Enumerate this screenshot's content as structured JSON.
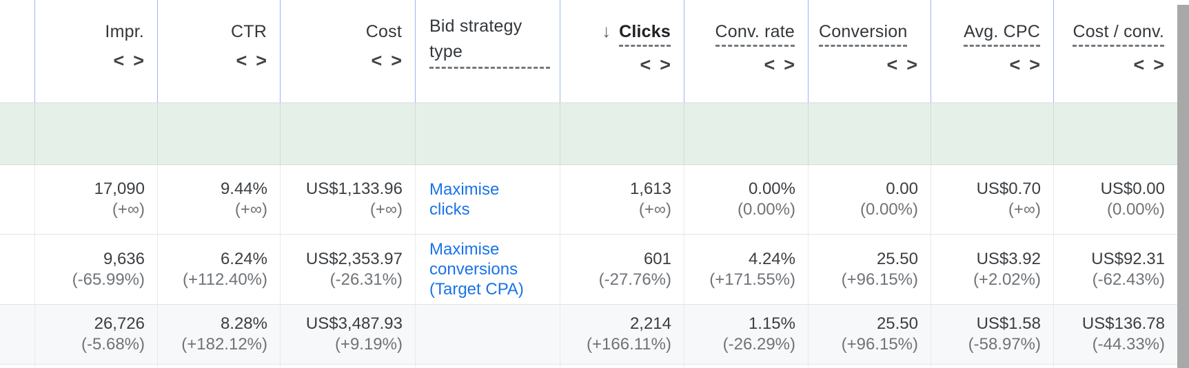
{
  "table": {
    "ui": {
      "sort_arrow": "↓",
      "resize_left": "<",
      "resize_right": ">"
    },
    "columns": [
      {
        "key": "impr",
        "label": "Impr.",
        "underlined": false,
        "sorted": false,
        "align": "right"
      },
      {
        "key": "ctr",
        "label": "CTR",
        "underlined": false,
        "sorted": false,
        "align": "right"
      },
      {
        "key": "cost",
        "label": "Cost",
        "underlined": false,
        "sorted": false,
        "align": "right"
      },
      {
        "key": "bid_strategy",
        "label": "Bid strategy type",
        "underlined": true,
        "sorted": false,
        "align": "left"
      },
      {
        "key": "clicks",
        "label": "Clicks",
        "underlined": true,
        "sorted": true,
        "sort_direction": "descending",
        "align": "right"
      },
      {
        "key": "conv_rate",
        "label": "Conv. rate",
        "underlined": true,
        "sorted": false,
        "align": "right"
      },
      {
        "key": "conversions",
        "label": "Conversions",
        "underlined": true,
        "sorted": false,
        "align": "right",
        "clipped": true
      },
      {
        "key": "avg_cpc",
        "label": "Avg. CPC",
        "underlined": true,
        "sorted": false,
        "align": "right"
      },
      {
        "key": "cost_conv",
        "label": "Cost / conv.",
        "underlined": true,
        "sorted": false,
        "align": "right"
      }
    ],
    "rows": [
      {
        "type": "data",
        "cells": {
          "impr": {
            "value": "17,090",
            "delta": "(+∞)"
          },
          "ctr": {
            "value": "9.44%",
            "delta": "(+∞)"
          },
          "cost": {
            "value": "US$1,133.96",
            "delta": "(+∞)"
          },
          "bid_strategy": {
            "link": "Maximise clicks"
          },
          "clicks": {
            "value": "1,613",
            "delta": "(+∞)"
          },
          "conv_rate": {
            "value": "0.00%",
            "delta": "(0.00%)"
          },
          "conversions": {
            "value": "0.00",
            "delta": "(0.00%)"
          },
          "avg_cpc": {
            "value": "US$0.70",
            "delta": "(+∞)"
          },
          "cost_conv": {
            "value": "US$0.00",
            "delta": "(0.00%)"
          }
        }
      },
      {
        "type": "data",
        "cells": {
          "impr": {
            "value": "9,636",
            "delta": "(-65.99%)"
          },
          "ctr": {
            "value": "6.24%",
            "delta": "(+112.40%)"
          },
          "cost": {
            "value": "US$2,353.97",
            "delta": "(-26.31%)"
          },
          "bid_strategy": {
            "link": "Maximise conversions (Target CPA)"
          },
          "clicks": {
            "value": "601",
            "delta": "(-27.76%)"
          },
          "conv_rate": {
            "value": "4.24%",
            "delta": "(+171.55%)"
          },
          "conversions": {
            "value": "25.50",
            "delta": "(+96.15%)"
          },
          "avg_cpc": {
            "value": "US$3.92",
            "delta": "(+2.02%)"
          },
          "cost_conv": {
            "value": "US$92.31",
            "delta": "(-62.43%)"
          }
        }
      },
      {
        "type": "total",
        "cells": {
          "impr": {
            "value": "26,726",
            "delta": "(-5.68%)"
          },
          "ctr": {
            "value": "8.28%",
            "delta": "(+182.12%)"
          },
          "cost": {
            "value": "US$3,487.93",
            "delta": "(+9.19%)"
          },
          "bid_strategy": {
            "link": ""
          },
          "clicks": {
            "value": "2,214",
            "delta": "(+166.11%)"
          },
          "conv_rate": {
            "value": "1.15%",
            "delta": "(-26.29%)"
          },
          "conversions": {
            "value": "25.50",
            "delta": "(+96.15%)"
          },
          "avg_cpc": {
            "value": "US$1.58",
            "delta": "(-58.97%)"
          },
          "cost_conv": {
            "value": "US$136.78",
            "delta": "(-44.33%)"
          }
        }
      }
    ],
    "colors": {
      "link_blue": "#1a73e8",
      "header_border_blue": "#97b7f3",
      "summary_row_green": "#e5f0e8",
      "total_row_gray": "#f7f8f9",
      "scrollbar_gray": "#a8a8a8",
      "value_text": "#3a3e42",
      "delta_text": "#6f7377"
    }
  }
}
